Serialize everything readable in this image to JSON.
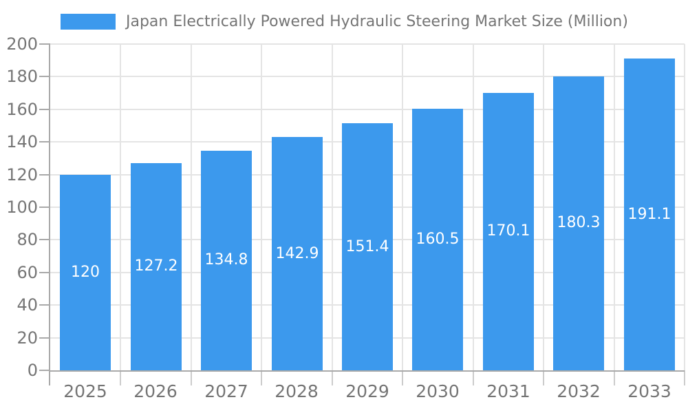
{
  "chart_data": {
    "type": "bar",
    "title": "Japan Electrically Powered Hydraulic Steering Market Size (Million)",
    "legend_position": "top",
    "categories": [
      "2025",
      "2026",
      "2027",
      "2028",
      "2029",
      "2030",
      "2031",
      "2032",
      "2033"
    ],
    "values": [
      120,
      127.2,
      134.8,
      142.9,
      151.4,
      160.5,
      170.1,
      180.3,
      191.1
    ],
    "value_labels": [
      "120",
      "127.2",
      "134.8",
      "142.9",
      "151.4",
      "160.5",
      "170.1",
      "180.3",
      "191.1"
    ],
    "xlabel": "",
    "ylabel": "",
    "ylim": [
      0,
      200
    ],
    "ytick_interval": 20,
    "ytick_labels": [
      "0",
      "20",
      "40",
      "60",
      "80",
      "100",
      "120",
      "140",
      "160",
      "180",
      "200"
    ],
    "grid": "horizontal and vertical gridlines on",
    "colors": {
      "bar": "#3C99ED",
      "value_label": "#FFFFFF",
      "axis_text": "#757575",
      "axis_line": "#A9A9A9",
      "gridline": "#E4E4E4",
      "category_tick": "#CCCCCC",
      "background": "#FFFFFF"
    }
  }
}
